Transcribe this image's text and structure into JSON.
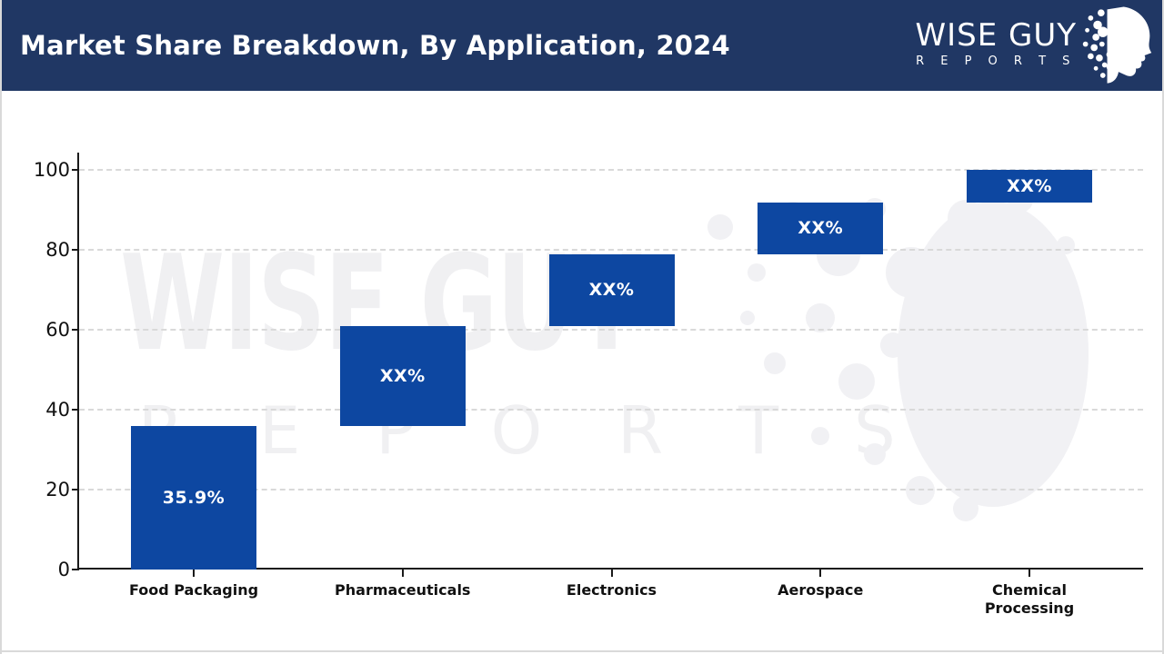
{
  "header": {
    "title": "Market Share Breakdown, By Application, 2024",
    "bg_color": "#203764",
    "logo": {
      "line1": "WISE GUY",
      "line2": "REPORTS"
    }
  },
  "watermark": {
    "line1": "WISE GUY",
    "line2": "REPORTS"
  },
  "chart_data": {
    "type": "bar",
    "subtype": "waterfall",
    "title": "Market Share Breakdown, By Application, 2024",
    "categories": [
      "Food Packaging",
      "Pharmaceuticals",
      "Electronics",
      "Aerospace",
      "Chemical Processing"
    ],
    "segments": [
      {
        "category": "Food Packaging",
        "start": 0,
        "end": 35.9,
        "label": "35.9%"
      },
      {
        "category": "Pharmaceuticals",
        "start": 35.9,
        "end": 60.9,
        "label": "XX%"
      },
      {
        "category": "Electronics",
        "start": 60.9,
        "end": 78.9,
        "label": "XX%"
      },
      {
        "category": "Aerospace",
        "start": 78.9,
        "end": 91.9,
        "label": "XX%"
      },
      {
        "category": "Chemical Processing",
        "start": 91.9,
        "end": 100,
        "label": "XX%"
      }
    ],
    "y_ticks": [
      0,
      20,
      40,
      60,
      80,
      100
    ],
    "ylim": [
      0,
      104
    ],
    "xlabel": "",
    "ylabel": "",
    "grid": "horizontal-dashed",
    "legend": "none",
    "bar_color": "#0d47a1",
    "axis_color": "#1a1a1a",
    "gridline_color": "#d9d9d9"
  }
}
